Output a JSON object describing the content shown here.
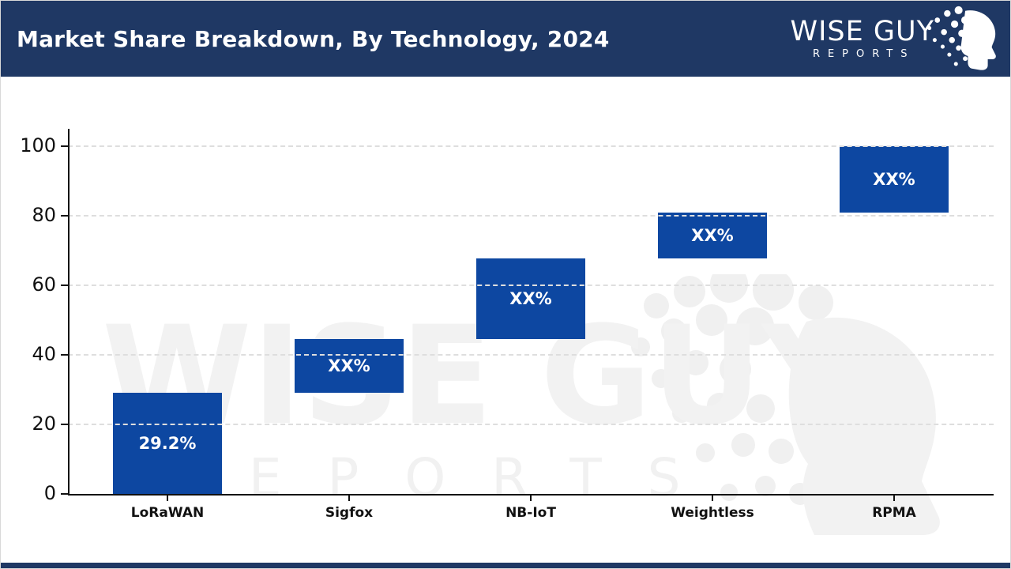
{
  "header": {
    "title": "Market Share Breakdown, By Technology, 2024",
    "bg_color": "#1f3864",
    "logo": {
      "wordmark": "WISE GUY",
      "tagline": "REPORTS"
    }
  },
  "watermark": {
    "wordmark": "WISE GUY",
    "tagline": "REPORTS"
  },
  "chart_data": {
    "type": "bar",
    "subtype": "floating-waterfall",
    "title": "Market Share Breakdown, By Technology, 2024",
    "xlabel": "",
    "ylabel": "",
    "categories": [
      "LoRaWAN",
      "Sigfox",
      "NB-IoT",
      "Weightless",
      "RPMA"
    ],
    "segments": [
      {
        "category": "LoRaWAN",
        "start": 0,
        "end": 29.2,
        "label": "29.2%"
      },
      {
        "category": "Sigfox",
        "start": 29.2,
        "end": 44.5,
        "label": "XX%"
      },
      {
        "category": "NB-IoT",
        "start": 44.5,
        "end": 67.8,
        "label": "XX%"
      },
      {
        "category": "Weightless",
        "start": 67.8,
        "end": 81.0,
        "label": "XX%"
      },
      {
        "category": "RPMA",
        "start": 81.0,
        "end": 100.0,
        "label": "XX%"
      }
    ],
    "yticks": [
      0,
      20,
      40,
      60,
      80,
      100
    ],
    "ylim": [
      0,
      105
    ],
    "grid": "horizontal-dashed",
    "grid_above_bars": true,
    "legend": "none",
    "bar_color": "#0d47a1",
    "bar_label_color": "#ffffff",
    "axis_color": "#111111",
    "gridline_color": "#dedede",
    "tick_label_color": "#111111"
  }
}
